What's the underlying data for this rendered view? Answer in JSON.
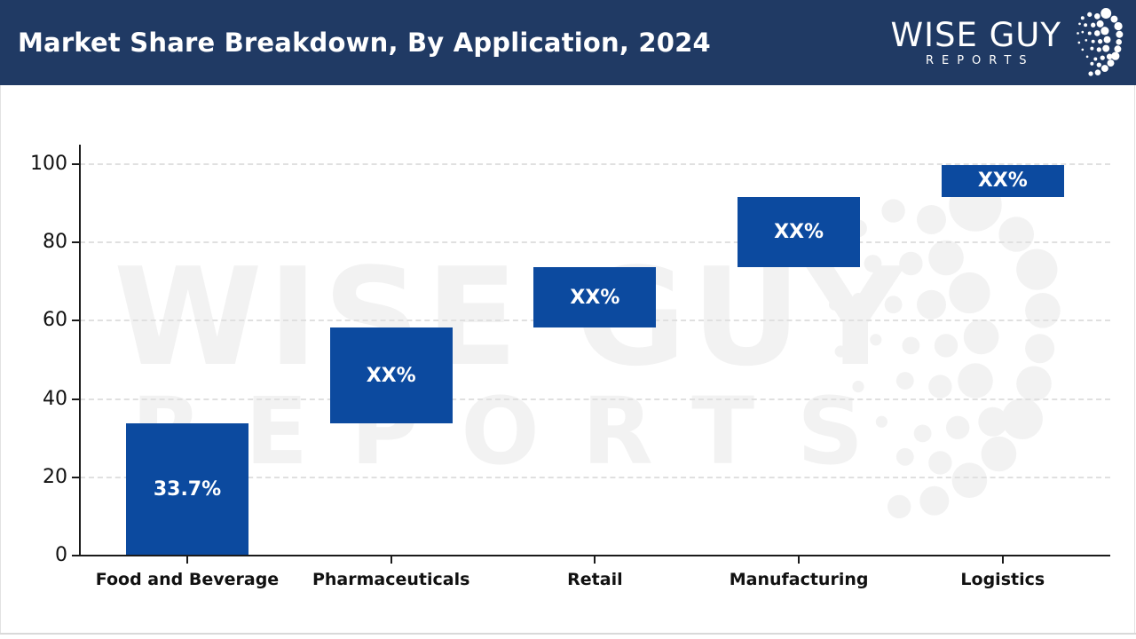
{
  "header": {
    "title": "Market Share Breakdown, By Application, 2024",
    "logo_line1": "WISE GUY",
    "logo_line2": "REPORTS"
  },
  "watermark": {
    "line1": "WISE GUY",
    "line2": "REPORTS"
  },
  "colors": {
    "header_bg": "#203a64",
    "bar": "#0c4a9f",
    "bar_label": "#ffffff",
    "gridline": "#e0e0e0",
    "axis": "#1a1a1a",
    "watermark": "#f2f2f2"
  },
  "chart_data": {
    "type": "bar",
    "subtype": "floating-waterfall",
    "title": "Market Share Breakdown, By Application, 2024",
    "xlabel": "",
    "ylabel": "",
    "ylim": [
      0,
      100
    ],
    "yticks": [
      0,
      20,
      40,
      60,
      80,
      100
    ],
    "grid": "horizontal-dashed",
    "legend": null,
    "categories": [
      "Food and Beverage",
      "Pharmaceuticals",
      "Retail",
      "Manufacturing",
      "Logistics"
    ],
    "bars": [
      {
        "category": "Food and Beverage",
        "start": 0,
        "end": 33.7,
        "label": "33.7%"
      },
      {
        "category": "Pharmaceuticals",
        "start": 33.7,
        "end": 58.2,
        "label": "XX%"
      },
      {
        "category": "Retail",
        "start": 58.2,
        "end": 73.7,
        "label": "XX%"
      },
      {
        "category": "Manufacturing",
        "start": 73.7,
        "end": 91.7,
        "label": "XX%"
      },
      {
        "category": "Logistics",
        "start": 91.7,
        "end": 99.7,
        "label": "XX%"
      }
    ]
  }
}
